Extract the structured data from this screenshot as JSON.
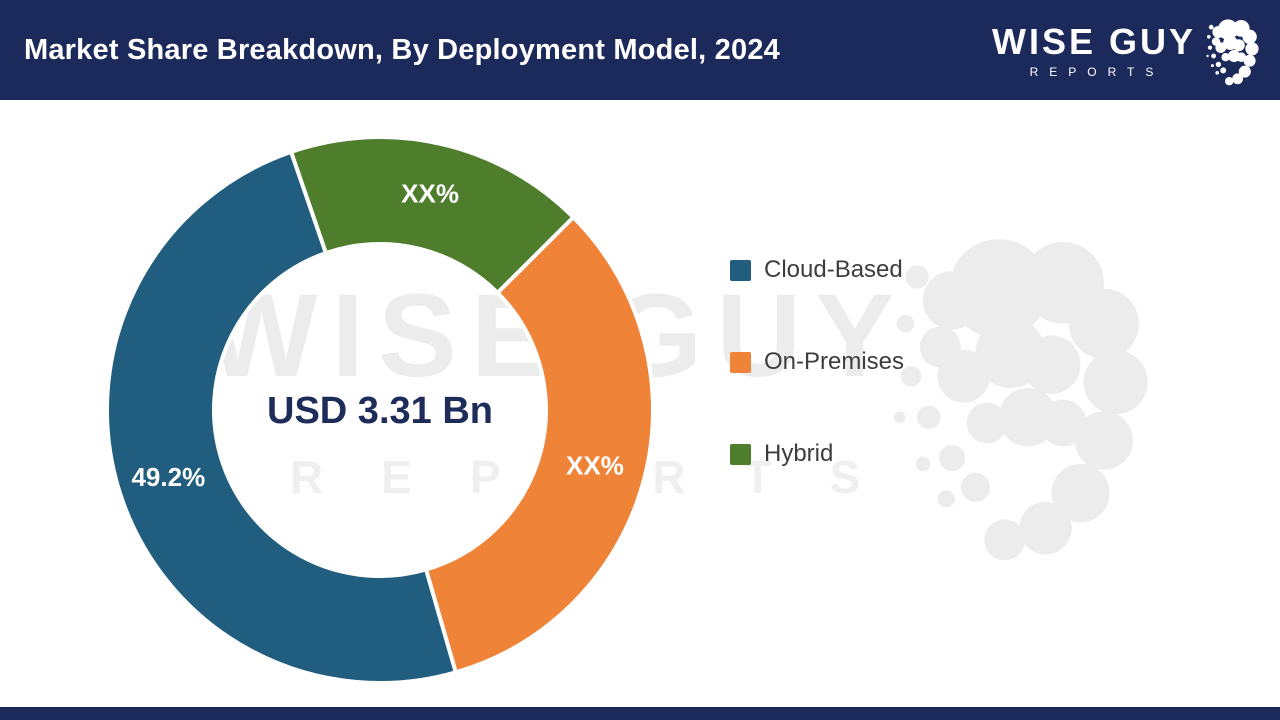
{
  "header": {
    "title": "Market Share Breakdown, By Deployment Model, 2024",
    "logo": {
      "line1": "WISE GUY",
      "line2": "REPORTS"
    }
  },
  "watermark": {
    "line1": "WISE GUY",
    "line2": "REPORTS"
  },
  "chart_data": {
    "type": "pie",
    "subtype": "donut",
    "title": "Market Share Breakdown, By Deployment Model, 2024",
    "center_label": "USD 3.31 Bn",
    "start_angle_deg": 109,
    "direction": "counterclockwise",
    "legend_position": "right",
    "segments": [
      {
        "name": "Cloud-Based",
        "value": 49.2,
        "label": "49.2%",
        "color": "#205d7e"
      },
      {
        "name": "On-Premises",
        "value": 33.0,
        "label": "XX%",
        "color": "#ef8438"
      },
      {
        "name": "Hybrid",
        "value": 17.8,
        "label": "XX%",
        "color": "#4e7d2c"
      }
    ]
  },
  "legend": {
    "items": [
      {
        "label": "Cloud-Based",
        "color": "#205d7e"
      },
      {
        "label": "On-Premises",
        "color": "#ef8438"
      },
      {
        "label": "Hybrid",
        "color": "#4e7d2c"
      }
    ]
  },
  "colors": {
    "header_bg": "#1b2a5a",
    "footer_bg": "#1b2a5a",
    "center_text": "#1e2c5a",
    "slice_label_text": "#ffffff",
    "legend_text": "#3d3d3d",
    "watermark": "#ececec"
  }
}
